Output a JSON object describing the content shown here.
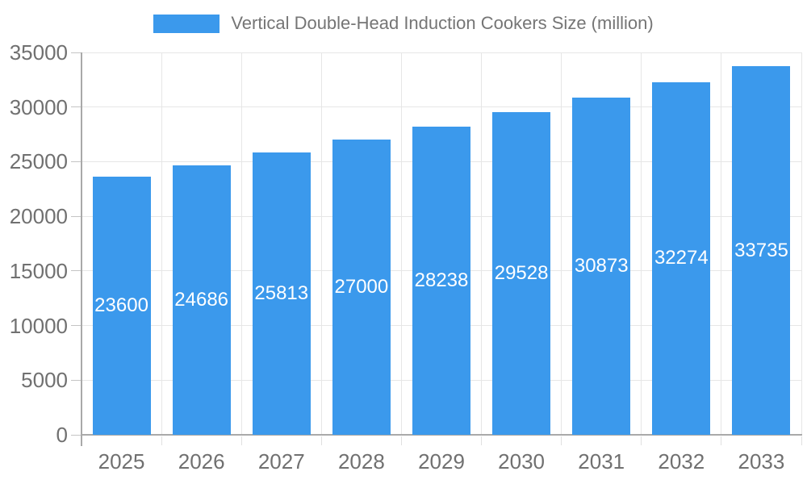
{
  "legend": {
    "label": "Vertical Double-Head Induction Cookers Size (million)"
  },
  "colors": {
    "bar": "#3B99EC",
    "grid": "#e6e6e6",
    "axis": "#a9a9a9",
    "tick_mark": "#c4c4c4",
    "sub_tick": "#e0e0e0",
    "axis_text": "#707070",
    "legend_text": "#757575",
    "value_label_text": "#ffffff"
  },
  "chart_data": {
    "type": "bar",
    "title": "Vertical Double-Head Induction Cookers Size (million)",
    "categories": [
      "2025",
      "2026",
      "2027",
      "2028",
      "2029",
      "2030",
      "2031",
      "2032",
      "2033"
    ],
    "values": [
      23600,
      24686,
      25813,
      27000,
      28238,
      29528,
      30873,
      32274,
      33735
    ],
    "xlabel": "",
    "ylabel": "",
    "ylim": [
      0,
      35000
    ],
    "yticks": [
      0,
      5000,
      10000,
      15000,
      20000,
      25000,
      30000,
      35000
    ],
    "grid": true,
    "legend_position": "top",
    "value_labels": "inside-center"
  }
}
